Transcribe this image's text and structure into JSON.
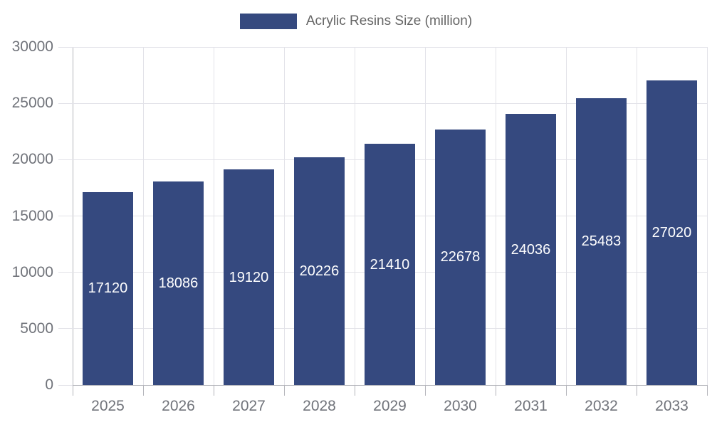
{
  "legend": {
    "label": "Acrylic Resins Size (million)"
  },
  "chart_data": {
    "type": "bar",
    "title": "Acrylic Resins Size (million)",
    "categories": [
      "2025",
      "2026",
      "2027",
      "2028",
      "2029",
      "2030",
      "2031",
      "2032",
      "2033"
    ],
    "values": [
      17120,
      18086,
      19120,
      20226,
      21410,
      22678,
      24036,
      25483,
      27020
    ],
    "series": [
      {
        "name": "Acrylic Resins Size (million)",
        "values": [
          17120,
          18086,
          19120,
          20226,
          21410,
          22678,
          24036,
          25483,
          27020
        ]
      }
    ],
    "xlabel": "",
    "ylabel": "",
    "ylim": [
      0,
      30000
    ],
    "yticks": [
      0,
      5000,
      10000,
      15000,
      20000,
      25000,
      30000
    ],
    "grid": true,
    "legend_position": "top",
    "bar_value_labels": "centered-white-inside-bar"
  },
  "colors": {
    "bar": "#35497f",
    "bar_label": "#ffffff",
    "grid_line": "#e2e2e8",
    "axis_line": "#b3b4ba",
    "tick_label": "#70737a",
    "legend_text": "#666666",
    "background": "#ffffff"
  }
}
